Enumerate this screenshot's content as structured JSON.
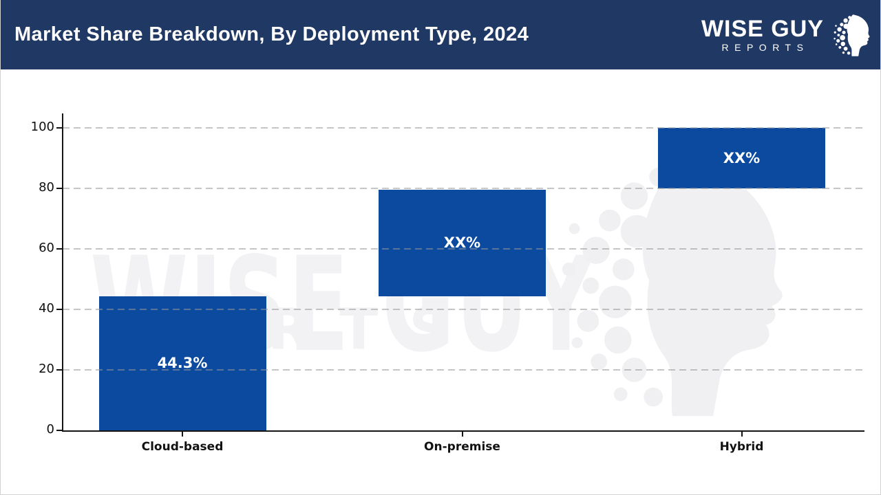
{
  "header": {
    "title": "Market Share Breakdown, By Deployment Type, 2024",
    "bg_color": "#1F3864",
    "logo": {
      "wordmark": "WISE GUY",
      "subtext": "REPORTS"
    }
  },
  "watermark": {
    "line1": "WISE GUY",
    "line2": "PORTS"
  },
  "chart_data": {
    "type": "bar",
    "subtype": "waterfall-stacked-segments",
    "title": "Market Share Breakdown, By Deployment Type, 2024",
    "categories": [
      "Cloud-based",
      "On-premise",
      "Hybrid"
    ],
    "segments": [
      {
        "category": "Cloud-based",
        "label": "44.3%",
        "start": 0,
        "end": 44.3,
        "value": 44.3
      },
      {
        "category": "On-premise",
        "label": "XX%",
        "start": 44.3,
        "end": 79.5,
        "value_estimated": 35.2
      },
      {
        "category": "Hybrid",
        "label": "XX%",
        "start": 80,
        "end": 100,
        "value_estimated": 20
      }
    ],
    "y_ticks": [
      0,
      20,
      40,
      60,
      80,
      100
    ],
    "ylim": [
      0,
      105
    ],
    "xlabel": "",
    "ylabel": "",
    "bar_color": "#0B4A9E",
    "bar_label_color": "#ffffff",
    "grid": "horizontal-dashed",
    "grid_color": "#d9d9d9",
    "legend": "none"
  }
}
